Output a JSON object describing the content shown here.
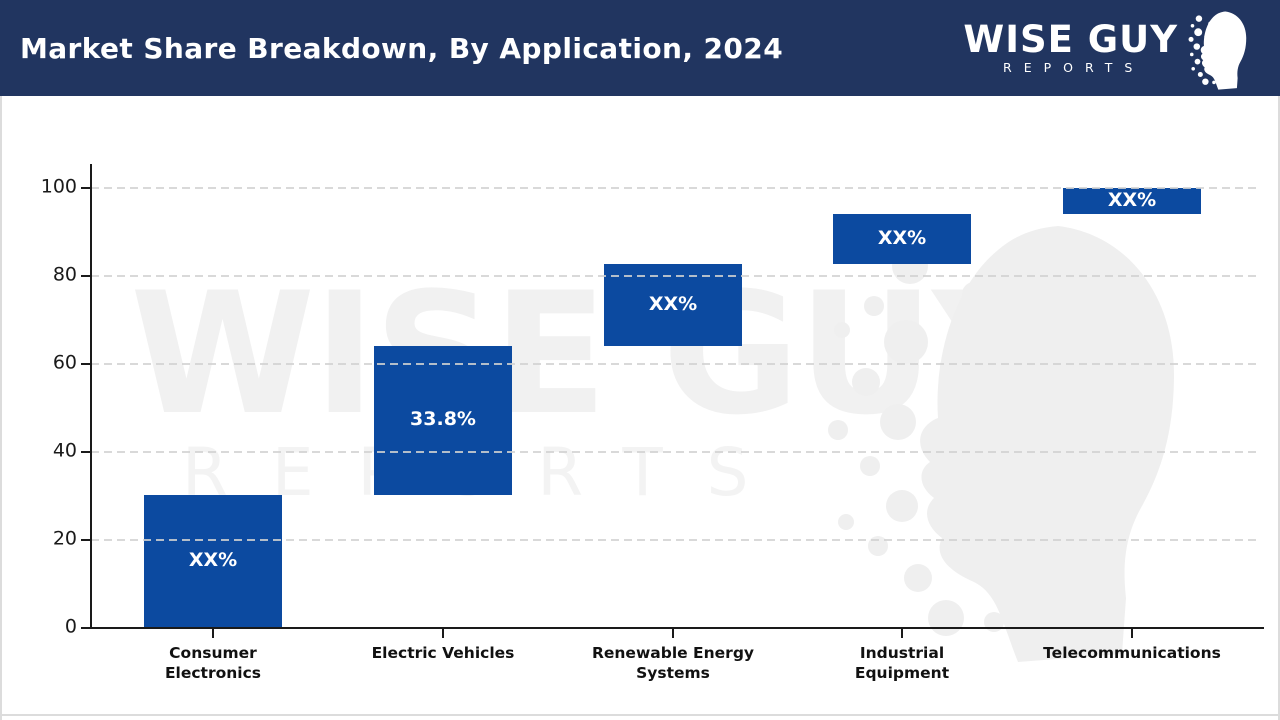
{
  "header": {
    "title": "Market Share Breakdown, By Application, 2024",
    "bg_color": "#213560",
    "logo": {
      "line1": "WISE GUY",
      "line2": "REPORTS"
    }
  },
  "watermark": {
    "line1": "WISE GUY",
    "line2": "REPORTS"
  },
  "chart_data": {
    "type": "bar",
    "subtype": "waterfall",
    "title": "Market Share Breakdown, By Application, 2024",
    "categories": [
      "Consumer Electronics",
      "Electric Vehicles",
      "Renewable Energy Systems",
      "Industrial Equipment",
      "Telecommunications"
    ],
    "category_lines": [
      [
        "Consumer",
        "Electronics"
      ],
      [
        "Electric Vehicles"
      ],
      [
        "Renewable Energy",
        "Systems"
      ],
      [
        "Industrial",
        "Equipment"
      ],
      [
        "Telecommunications"
      ]
    ],
    "bars": [
      {
        "label": "XX%",
        "start": 0,
        "end": 30
      },
      {
        "label": "33.8%",
        "start": 30.1,
        "end": 63.9
      },
      {
        "label": "XX%",
        "start": 63.9,
        "end": 82.6
      },
      {
        "label": "XX%",
        "start": 82.6,
        "end": 93.9
      },
      {
        "label": "XX%",
        "start": 93.9,
        "end": 99.8
      }
    ],
    "y_ticks": [
      0,
      20,
      40,
      60,
      80,
      100
    ],
    "ylim": [
      0,
      104
    ],
    "grid": "dashed-horizontal",
    "legend": "none",
    "bar_color": "#0c4aa0",
    "value_label_color": "#ffffff",
    "axis_color": "#1a1a1a",
    "gridline_color": "#d2d2d2"
  }
}
